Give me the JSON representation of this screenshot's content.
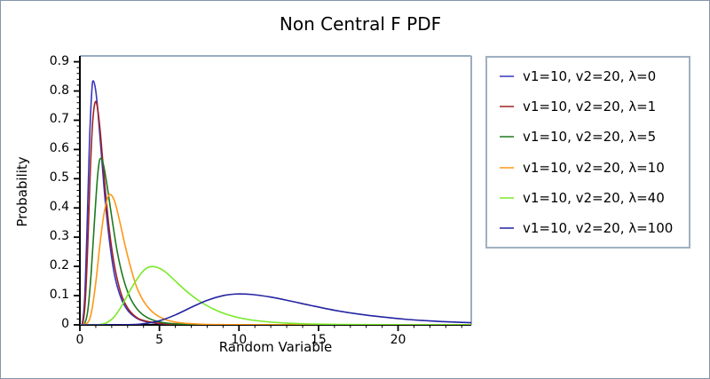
{
  "title": "Non Central F PDF",
  "chart_data": {
    "type": "line",
    "title": "Non Central F PDF",
    "xlabel": "Random Variable",
    "ylabel": "Probability",
    "xlim": [
      0,
      24.6
    ],
    "ylim": [
      0,
      0.92
    ],
    "grid": false,
    "legend_position": "right",
    "axis_frame_color": "#9badc0",
    "axis_line_color": "#000000",
    "x_tick_values": [
      0,
      5,
      10,
      15,
      20
    ],
    "x_tick_labels": [
      "0",
      "5",
      "10",
      "15",
      "20"
    ],
    "x_minor_step": 1,
    "y_tick_values": [
      0,
      0.1,
      0.2,
      0.3,
      0.4,
      0.5,
      0.6,
      0.7,
      0.8,
      0.9
    ],
    "y_tick_labels": [
      "0",
      "0.1",
      "0.2",
      "0.3",
      "0.4",
      "0.5",
      "0.6",
      "0.7",
      "0.8",
      "0.9"
    ],
    "y_minor_step": 0.02,
    "series": [
      {
        "label": "v1=10, v2=20, λ=0",
        "color": "#3636bd",
        "points": [
          [
            0,
            0
          ],
          [
            0.15,
            0.005
          ],
          [
            0.3,
            0.09
          ],
          [
            0.45,
            0.33
          ],
          [
            0.6,
            0.62
          ],
          [
            0.75,
            0.8
          ],
          [
            0.85,
            0.835
          ],
          [
            1.0,
            0.8
          ],
          [
            1.15,
            0.72
          ],
          [
            1.35,
            0.585
          ],
          [
            1.6,
            0.42
          ],
          [
            1.9,
            0.27
          ],
          [
            2.2,
            0.165
          ],
          [
            2.6,
            0.09
          ],
          [
            3.0,
            0.05
          ],
          [
            3.5,
            0.025
          ],
          [
            4.0,
            0.013
          ],
          [
            5.0,
            0.004
          ],
          [
            6.0,
            0.0015
          ],
          [
            8.0,
            0.0004
          ],
          [
            10,
            0.0001
          ],
          [
            24.6,
            0
          ]
        ]
      },
      {
        "label": "v1=10, v2=20, λ=1",
        "color": "#a02222",
        "points": [
          [
            0,
            0
          ],
          [
            0.2,
            0.01
          ],
          [
            0.35,
            0.09
          ],
          [
            0.5,
            0.28
          ],
          [
            0.65,
            0.52
          ],
          [
            0.8,
            0.69
          ],
          [
            0.95,
            0.76
          ],
          [
            1.1,
            0.745
          ],
          [
            1.3,
            0.65
          ],
          [
            1.55,
            0.49
          ],
          [
            1.85,
            0.325
          ],
          [
            2.2,
            0.195
          ],
          [
            2.6,
            0.105
          ],
          [
            3.0,
            0.058
          ],
          [
            3.5,
            0.028
          ],
          [
            4.0,
            0.015
          ],
          [
            5.0,
            0.005
          ],
          [
            6.0,
            0.002
          ],
          [
            8,
            0.0004
          ],
          [
            10,
            0.0001
          ],
          [
            24.6,
            0
          ]
        ]
      },
      {
        "label": "v1=10, v2=20, λ=5",
        "color": "#1e7a1e",
        "points": [
          [
            0,
            0
          ],
          [
            0.3,
            0.005
          ],
          [
            0.5,
            0.05
          ],
          [
            0.7,
            0.17
          ],
          [
            0.9,
            0.34
          ],
          [
            1.1,
            0.5
          ],
          [
            1.25,
            0.565
          ],
          [
            1.45,
            0.555
          ],
          [
            1.7,
            0.48
          ],
          [
            2.0,
            0.37
          ],
          [
            2.35,
            0.25
          ],
          [
            2.7,
            0.165
          ],
          [
            3.1,
            0.1
          ],
          [
            3.6,
            0.054
          ],
          [
            4.2,
            0.026
          ],
          [
            5.0,
            0.01
          ],
          [
            6.0,
            0.0035
          ],
          [
            7.5,
            0.001
          ],
          [
            10,
            0.0002
          ],
          [
            24.6,
            0
          ]
        ]
      },
      {
        "label": "v1=10, v2=20, λ=10",
        "color": "#ff9716",
        "points": [
          [
            0,
            0
          ],
          [
            0.5,
            0.008
          ],
          [
            0.75,
            0.05
          ],
          [
            1.0,
            0.145
          ],
          [
            1.25,
            0.27
          ],
          [
            1.5,
            0.375
          ],
          [
            1.75,
            0.435
          ],
          [
            1.95,
            0.445
          ],
          [
            2.2,
            0.42
          ],
          [
            2.5,
            0.355
          ],
          [
            2.85,
            0.27
          ],
          [
            3.2,
            0.195
          ],
          [
            3.6,
            0.125
          ],
          [
            4.1,
            0.073
          ],
          [
            4.7,
            0.038
          ],
          [
            5.4,
            0.018
          ],
          [
            6.2,
            0.008
          ],
          [
            7.5,
            0.0025
          ],
          [
            9,
            0.0008
          ],
          [
            12,
            0.0001
          ],
          [
            24.6,
            0
          ]
        ]
      },
      {
        "label": "v1=10, v2=20, λ=40",
        "color": "#79ea28",
        "points": [
          [
            0,
            0
          ],
          [
            1.2,
            0.001
          ],
          [
            1.7,
            0.008
          ],
          [
            2.2,
            0.03
          ],
          [
            2.7,
            0.072
          ],
          [
            3.2,
            0.122
          ],
          [
            3.7,
            0.165
          ],
          [
            4.1,
            0.19
          ],
          [
            4.45,
            0.199
          ],
          [
            4.9,
            0.196
          ],
          [
            5.4,
            0.18
          ],
          [
            6.0,
            0.15
          ],
          [
            6.7,
            0.115
          ],
          [
            7.5,
            0.082
          ],
          [
            8.4,
            0.054
          ],
          [
            9.4,
            0.033
          ],
          [
            10.5,
            0.019
          ],
          [
            11.7,
            0.011
          ],
          [
            13,
            0.006
          ],
          [
            14.5,
            0.003
          ],
          [
            16.5,
            0.0013
          ],
          [
            19,
            0.0005
          ],
          [
            22,
            0.0002
          ],
          [
            24.6,
            0.0001
          ]
        ]
      },
      {
        "label": "v1=10, v2=20, λ=100",
        "color": "#2323a2",
        "points": [
          [
            0,
            0
          ],
          [
            3,
            0.0005
          ],
          [
            4,
            0.004
          ],
          [
            5,
            0.014
          ],
          [
            6,
            0.034
          ],
          [
            7,
            0.06
          ],
          [
            8,
            0.084
          ],
          [
            9,
            0.1
          ],
          [
            9.8,
            0.1055
          ],
          [
            10.8,
            0.104
          ],
          [
            12,
            0.095
          ],
          [
            13.2,
            0.082
          ],
          [
            14.5,
            0.0665
          ],
          [
            16,
            0.05
          ],
          [
            17.5,
            0.037
          ],
          [
            19,
            0.027
          ],
          [
            20.5,
            0.019
          ],
          [
            22,
            0.0135
          ],
          [
            23.3,
            0.01
          ],
          [
            24.6,
            0.0075
          ]
        ]
      }
    ]
  }
}
